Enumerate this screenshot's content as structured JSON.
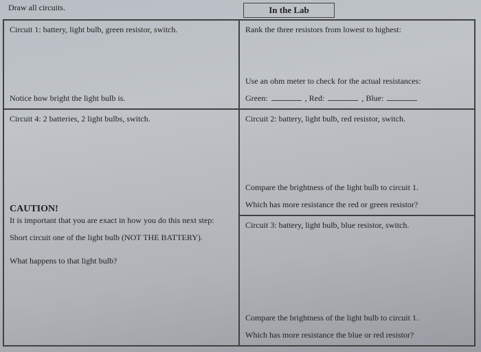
{
  "header": {
    "instruction": "Draw all circuits.",
    "tab": "In the Lab"
  },
  "cells": {
    "c1": {
      "title": "Circuit 1: battery, light bulb, green resistor, switch.",
      "note": "Notice how bright the light bulb is."
    },
    "c2": {
      "rank": "Rank the three resistors from lowest to highest:",
      "ohm": "Use an ohm meter to check for the actual resistances:",
      "g": "Green:",
      "r": ", Red:",
      "b": ", Blue:"
    },
    "c3": {
      "title": "Circuit 2: battery, light bulb, red resistor, switch.",
      "cmp": "Compare the brightness of the light bulb to circuit 1.",
      "q": "Which has more resistance the red or green resistor?"
    },
    "c4": {
      "title": "Circuit 4: 2 batteries, 2 light bulbs, switch.",
      "caution": "CAUTION!",
      "warn": "It is important that you are exact in how you do this next step:",
      "short": "Short circuit one of the light bulb (NOT THE BATTERY).",
      "what": "What happens to that light bulb?"
    },
    "c5": {
      "title": "Circuit 3: battery, light bulb, blue resistor, switch.",
      "cmp": "Compare the brightness of the light bulb to circuit 1.",
      "q": "Which has more resistance the blue or red resistor?"
    }
  }
}
